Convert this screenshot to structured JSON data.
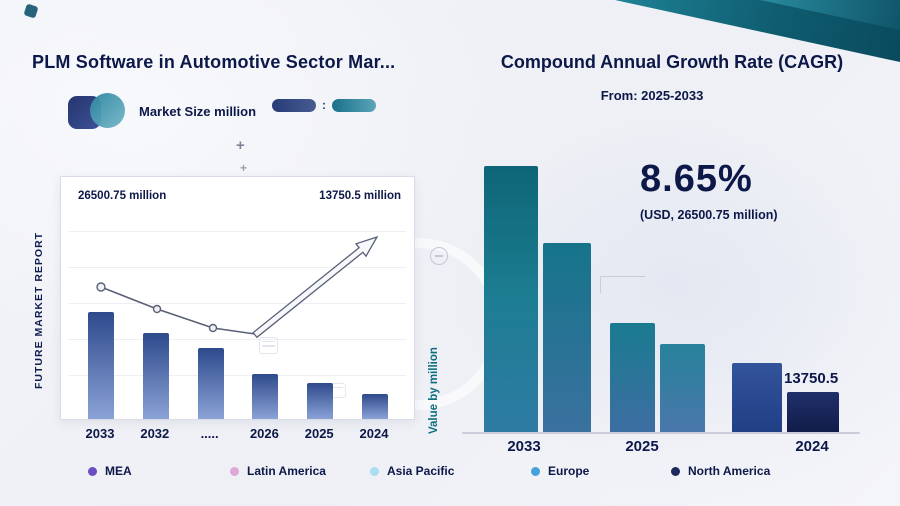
{
  "header": {
    "left_title": "PLM Software in Automotive Sector Mar...",
    "right_title": "Compound Annual Growth Rate (CAGR)",
    "right_subtitle": "From: 2025-2033"
  },
  "market_legend": {
    "label": "Market Size million"
  },
  "decor": {
    "plus_a": "+",
    "plus_b": "+",
    "pill_separator": ":"
  },
  "left_chart": {
    "watermark": "FUTURE MARKET REPORT",
    "top_left_value": "26500.75 million",
    "top_right_value": "13750.5 million"
  },
  "right_chart": {
    "cagr_value": "8.65%",
    "cagr_note": "(USD, 26500.75 million)",
    "bar_value_label": "13750.5",
    "y_axis_label": "Value by million"
  },
  "legend": {
    "items": [
      {
        "label": "MEA",
        "color": "#6a4fc0"
      },
      {
        "label": "Latin America",
        "color": "#dfa6d6"
      },
      {
        "label": "Asia Pacific",
        "color": "#a9ddf1"
      },
      {
        "label": "Europe",
        "color": "#46a0dc"
      },
      {
        "label": "North America",
        "color": "#1c2a5e"
      }
    ]
  },
  "colors": {
    "navy_text": "#0c1848",
    "teal_accent": "#0d6e80",
    "bar_gradient_top": "#2e4a8c",
    "bar_gradient_bottom": "#8aa2d6",
    "corner_wedge_teal": "#0f5d70"
  },
  "chart_data": [
    {
      "type": "bar",
      "title": "PLM Software in Automotive Sector Mar...",
      "categories": [
        "2033",
        "2032",
        ".....",
        "2026",
        "2025",
        "2024"
      ],
      "values": [
        100,
        80,
        66,
        42,
        34,
        23
      ],
      "value_unit": "relative height (no numeric axis shown)",
      "annotations": {
        "top_left": "26500.75 million",
        "top_right": "13750.5 million",
        "trend": "declining bars left-to-right with markers and a rising outlined arrow"
      },
      "legend": [
        "Market Size million"
      ],
      "grid": true
    },
    {
      "type": "bar",
      "title": "Compound Annual Growth Rate (CAGR)",
      "subtitle": "From: 2025-2033",
      "categories": [
        "2033",
        "2025",
        "2024"
      ],
      "series": [
        {
          "name": "bar-1",
          "values": [
            100,
            41,
            26
          ]
        },
        {
          "name": "bar-2",
          "values": [
            71,
            33,
            15
          ]
        }
      ],
      "value_unit": "relative height (no numeric axis shown)",
      "ylabel": "Value by million",
      "annotations": {
        "cagr": "8.65%",
        "usd": "(USD, 26500.75 million)",
        "label_2024": "13750.5"
      },
      "grid": false
    }
  ]
}
